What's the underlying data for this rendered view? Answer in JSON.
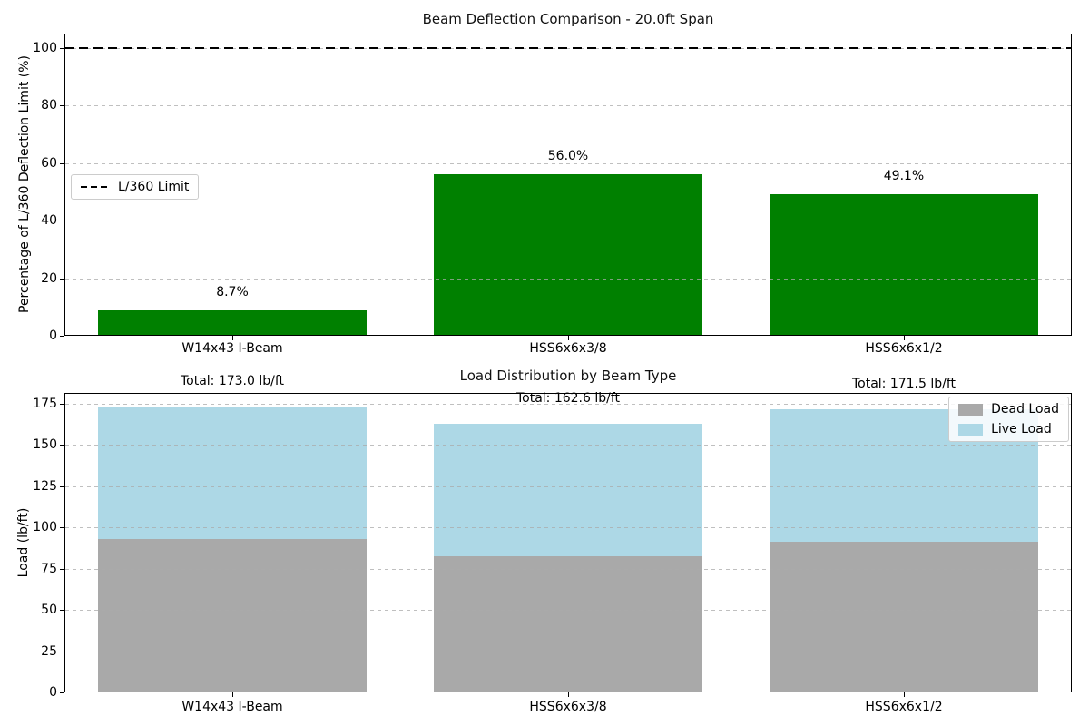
{
  "chart_data": [
    {
      "type": "bar",
      "title": "Beam Deflection Comparison - 20.0ft Span",
      "ylabel": "Percentage of L/360 Deflection Limit (%)",
      "xlabel": "",
      "categories": [
        "W14x43 I-Beam",
        "HSS6x6x3/8",
        "HSS6x6x1/2"
      ],
      "values": [
        8.7,
        56.0,
        49.1
      ],
      "value_labels": [
        "8.7%",
        "56.0%",
        "49.1%"
      ],
      "bar_color": "#008000",
      "ylim": [
        0,
        105
      ],
      "yticks": [
        0,
        20,
        40,
        60,
        80,
        100
      ],
      "grid": true,
      "reference_line": {
        "value": 100,
        "label": "L/360 Limit",
        "color": "#000000",
        "style": "dashed"
      },
      "legend": {
        "position": "center left",
        "entries": [
          {
            "label": "L/360 Limit",
            "swatch": "dashed-line",
            "color": "#000000"
          }
        ]
      }
    },
    {
      "type": "bar-stacked",
      "title": "Load Distribution by Beam Type",
      "ylabel": "Load (lb/ft)",
      "xlabel": "",
      "categories": [
        "W14x43 I-Beam",
        "HSS6x6x3/8",
        "HSS6x6x1/2"
      ],
      "series": [
        {
          "name": "Dead Load",
          "color": "#a9a9a9",
          "values": [
            93.0,
            82.6,
            91.5
          ]
        },
        {
          "name": "Live Load",
          "color": "#add8e6",
          "values": [
            80.0,
            80.0,
            80.0
          ]
        }
      ],
      "totals": [
        173.0,
        162.6,
        171.5
      ],
      "total_labels": [
        "Total: 173.0 lb/ft",
        "Total: 162.6 lb/ft",
        "Total: 171.5 lb/ft"
      ],
      "ylim": [
        0,
        181.5
      ],
      "yticks": [
        0,
        25,
        50,
        75,
        100,
        125,
        150,
        175
      ],
      "grid": true,
      "legend": {
        "position": "upper right",
        "entries": [
          {
            "label": "Dead Load",
            "swatch": "patch",
            "color": "#a9a9a9"
          },
          {
            "label": "Live Load",
            "swatch": "patch",
            "color": "#add8e6"
          }
        ]
      }
    }
  ]
}
